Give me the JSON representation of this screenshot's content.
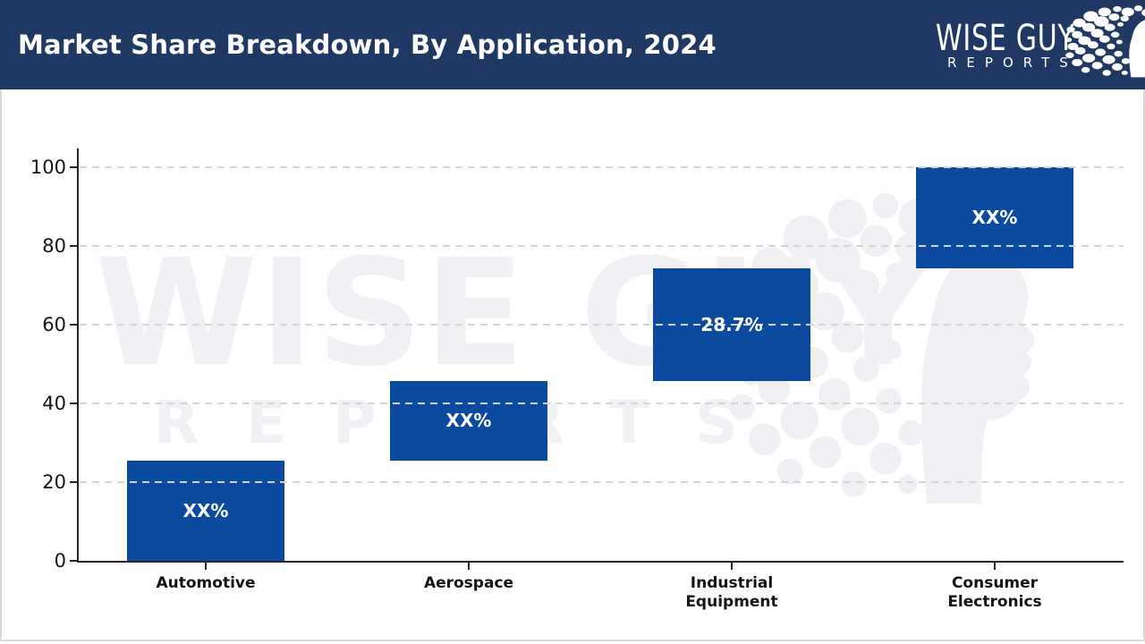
{
  "header": {
    "title": "Market Share Breakdown, By Application, 2024",
    "logo": {
      "brand_top": "WISE GUY",
      "brand_bottom": "REPORTS",
      "icon": "dotted-face-icon",
      "colors": {
        "background": "#203864",
        "text": "#ffffff"
      }
    }
  },
  "watermark": {
    "line1": "WISE GUY",
    "line2": "REPORTS",
    "icon": "dotted-face-icon",
    "color": "#f0f1f4"
  },
  "chart_data": {
    "type": "bar",
    "variant": "floating-waterfall",
    "title": "Market Share Breakdown, By Application, 2024",
    "xlabel": "",
    "ylabel": "",
    "categories": [
      "Automotive",
      "Aerospace",
      "Industrial Equipment",
      "Consumer Electronics"
    ],
    "series": [
      {
        "name": "Market share (%)",
        "ranges": [
          [
            0,
            25.5
          ],
          [
            25.5,
            45.7
          ],
          [
            45.7,
            74.4
          ],
          [
            74.4,
            100
          ]
        ],
        "labels": [
          "XX%",
          "XX%",
          "28.7%",
          "XX%"
        ]
      }
    ],
    "ylim": [
      0,
      100
    ],
    "yticks": [
      0,
      20,
      40,
      60,
      80,
      100
    ],
    "grid": "horizontal-dashed",
    "legend": "none",
    "colors": {
      "bar": "#0b4a9e",
      "bar_label": "#ffffff",
      "axis": "#262626",
      "gridline": "#d4d4d4",
      "tick_label": "#141414"
    }
  }
}
